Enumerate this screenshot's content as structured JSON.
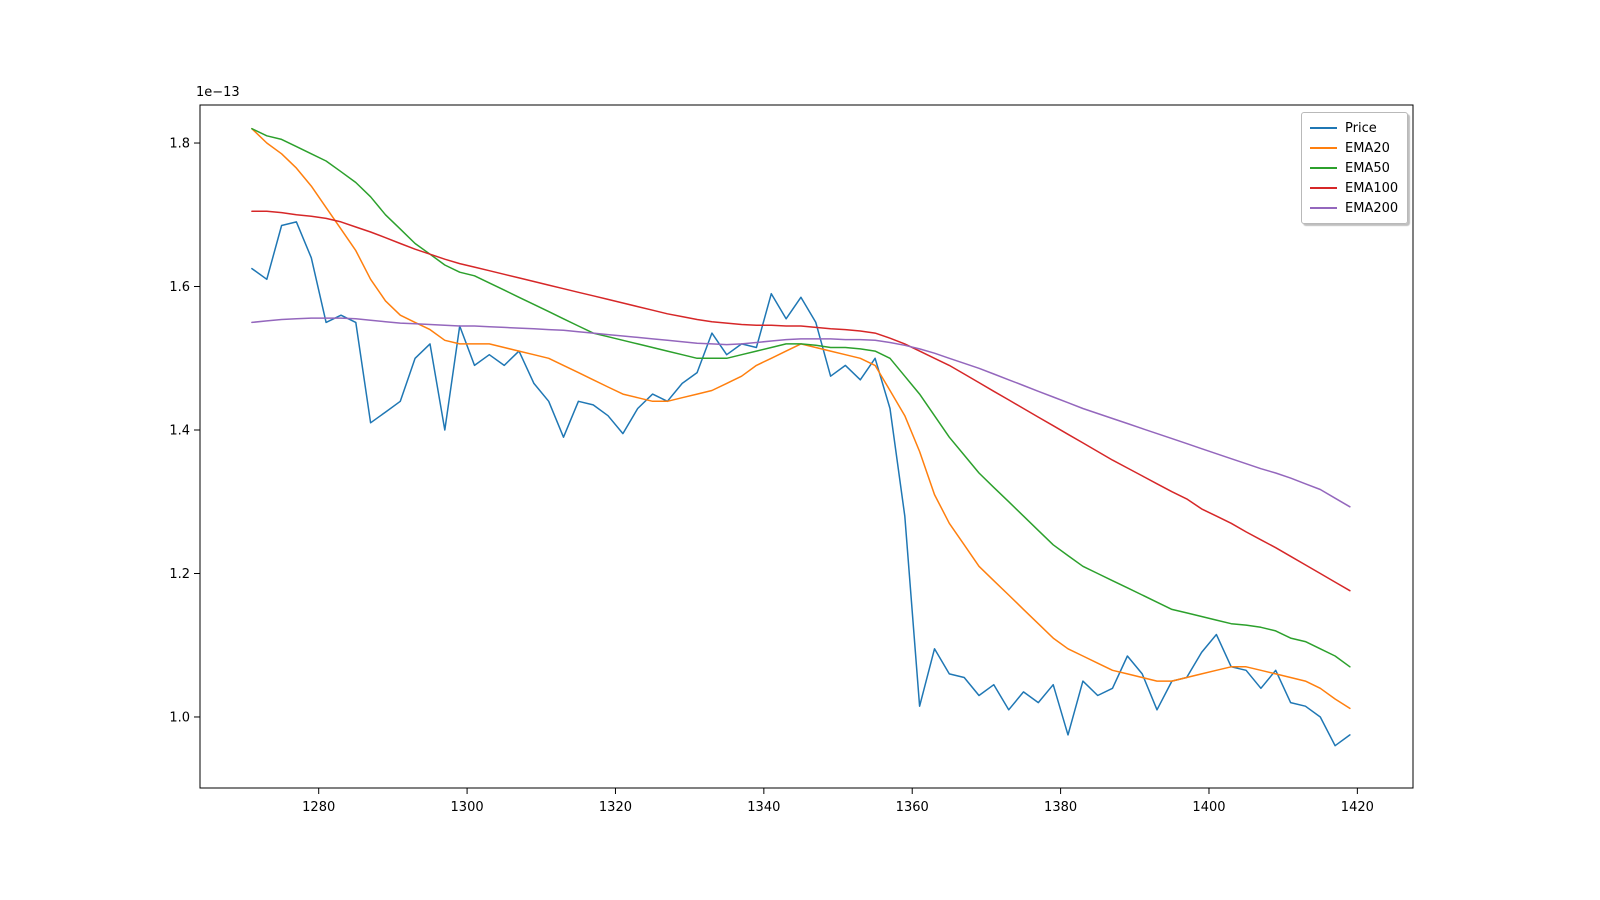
{
  "page": {
    "background": "#ffffff"
  },
  "chart_data": {
    "type": "line",
    "title": "",
    "xlabel": "",
    "ylabel": "",
    "offset_text": "1e−13",
    "xlim": [
      1264,
      1427.5
    ],
    "ylim": [
      0.901,
      1.853
    ],
    "x_ticks": [
      1280,
      1300,
      1320,
      1340,
      1360,
      1380,
      1400,
      1420
    ],
    "y_ticks": [
      1.0,
      1.2,
      1.4,
      1.6,
      1.8
    ],
    "grid": false,
    "legend_position": "upper right",
    "legend_entries": [
      "Price",
      "EMA20",
      "EMA50",
      "EMA100",
      "EMA200"
    ],
    "x_start": 1271,
    "x_step": 2,
    "series": [
      {
        "name": "Price",
        "color": "#1f77b4",
        "values": [
          1.625,
          1.61,
          1.685,
          1.69,
          1.64,
          1.55,
          1.56,
          1.55,
          1.41,
          1.425,
          1.44,
          1.5,
          1.52,
          1.4,
          1.545,
          1.49,
          1.505,
          1.49,
          1.51,
          1.465,
          1.44,
          1.39,
          1.44,
          1.435,
          1.42,
          1.395,
          1.43,
          1.45,
          1.44,
          1.465,
          1.48,
          1.535,
          1.505,
          1.52,
          1.515,
          1.59,
          1.555,
          1.585,
          1.55,
          1.475,
          1.49,
          1.47,
          1.5,
          1.43,
          1.28,
          1.015,
          1.095,
          1.06,
          1.055,
          1.03,
          1.045,
          1.01,
          1.035,
          1.02,
          1.045,
          0.975,
          1.05,
          1.03,
          1.04,
          1.085,
          1.06,
          1.01,
          1.05,
          1.055,
          1.09,
          1.115,
          1.07,
          1.065,
          1.04,
          1.065,
          1.02,
          1.015,
          1.0,
          0.96,
          0.975
        ]
      },
      {
        "name": "EMA20",
        "color": "#ff7f0e",
        "values": [
          1.82,
          1.8,
          1.785,
          1.765,
          1.74,
          1.71,
          1.68,
          1.65,
          1.61,
          1.58,
          1.56,
          1.55,
          1.54,
          1.525,
          1.52,
          1.52,
          1.52,
          1.515,
          1.51,
          1.505,
          1.5,
          1.49,
          1.48,
          1.47,
          1.46,
          1.45,
          1.445,
          1.44,
          1.44,
          1.445,
          1.45,
          1.455,
          1.465,
          1.475,
          1.49,
          1.5,
          1.51,
          1.52,
          1.515,
          1.51,
          1.505,
          1.5,
          1.49,
          1.455,
          1.42,
          1.37,
          1.31,
          1.27,
          1.24,
          1.21,
          1.19,
          1.17,
          1.15,
          1.13,
          1.11,
          1.095,
          1.085,
          1.075,
          1.065,
          1.06,
          1.055,
          1.05,
          1.05,
          1.055,
          1.06,
          1.065,
          1.07,
          1.07,
          1.065,
          1.06,
          1.055,
          1.05,
          1.04,
          1.025,
          1.012
        ]
      },
      {
        "name": "EMA50",
        "color": "#2ca02c",
        "values": [
          1.82,
          1.81,
          1.805,
          1.795,
          1.785,
          1.775,
          1.76,
          1.745,
          1.725,
          1.7,
          1.68,
          1.66,
          1.645,
          1.63,
          1.62,
          1.615,
          1.605,
          1.595,
          1.585,
          1.575,
          1.565,
          1.555,
          1.545,
          1.535,
          1.53,
          1.525,
          1.52,
          1.515,
          1.51,
          1.505,
          1.5,
          1.5,
          1.5,
          1.505,
          1.51,
          1.515,
          1.52,
          1.52,
          1.518,
          1.515,
          1.515,
          1.513,
          1.51,
          1.5,
          1.475,
          1.45,
          1.42,
          1.39,
          1.365,
          1.34,
          1.32,
          1.3,
          1.28,
          1.26,
          1.24,
          1.225,
          1.21,
          1.2,
          1.19,
          1.18,
          1.17,
          1.16,
          1.15,
          1.145,
          1.14,
          1.135,
          1.13,
          1.128,
          1.125,
          1.12,
          1.11,
          1.105,
          1.095,
          1.085,
          1.07
        ]
      },
      {
        "name": "EMA100",
        "color": "#d62728",
        "values": [
          1.705,
          1.705,
          1.703,
          1.7,
          1.698,
          1.695,
          1.69,
          1.683,
          1.676,
          1.668,
          1.66,
          1.652,
          1.645,
          1.638,
          1.632,
          1.627,
          1.622,
          1.617,
          1.612,
          1.607,
          1.602,
          1.597,
          1.592,
          1.587,
          1.582,
          1.577,
          1.572,
          1.567,
          1.562,
          1.558,
          1.554,
          1.551,
          1.549,
          1.547,
          1.546,
          1.546,
          1.545,
          1.545,
          1.543,
          1.541,
          1.54,
          1.538,
          1.535,
          1.528,
          1.52,
          1.51,
          1.5,
          1.49,
          1.478,
          1.466,
          1.454,
          1.442,
          1.43,
          1.418,
          1.406,
          1.394,
          1.382,
          1.37,
          1.358,
          1.347,
          1.336,
          1.325,
          1.314,
          1.304,
          1.29,
          1.28,
          1.27,
          1.258,
          1.247,
          1.236,
          1.224,
          1.212,
          1.2,
          1.188,
          1.176
        ]
      },
      {
        "name": "EMA200",
        "color": "#9467bd",
        "values": [
          1.55,
          1.552,
          1.554,
          1.555,
          1.556,
          1.556,
          1.556,
          1.555,
          1.553,
          1.551,
          1.549,
          1.548,
          1.547,
          1.546,
          1.545,
          1.545,
          1.544,
          1.543,
          1.542,
          1.541,
          1.54,
          1.539,
          1.537,
          1.535,
          1.533,
          1.531,
          1.529,
          1.527,
          1.525,
          1.523,
          1.521,
          1.52,
          1.519,
          1.52,
          1.522,
          1.524,
          1.526,
          1.527,
          1.527,
          1.527,
          1.526,
          1.526,
          1.525,
          1.522,
          1.518,
          1.513,
          1.507,
          1.5,
          1.493,
          1.486,
          1.478,
          1.47,
          1.462,
          1.454,
          1.446,
          1.438,
          1.43,
          1.423,
          1.416,
          1.409,
          1.402,
          1.395,
          1.388,
          1.381,
          1.374,
          1.367,
          1.36,
          1.353,
          1.346,
          1.34,
          1.333,
          1.325,
          1.317,
          1.305,
          1.293
        ]
      }
    ]
  }
}
